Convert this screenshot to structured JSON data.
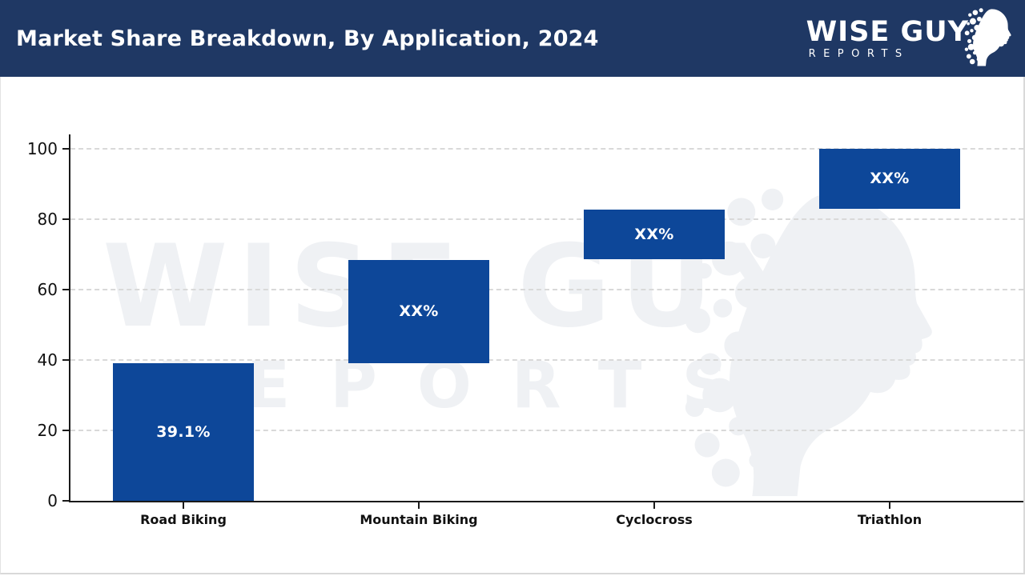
{
  "header": {
    "title": "Market Share Breakdown, By Application, 2024",
    "logo": {
      "line1": "WISE GUY",
      "line2": "REPORTS"
    }
  },
  "watermark": {
    "line1": "WISE GUY",
    "line2": "REPORTS"
  },
  "colors": {
    "header_bg": "#1f3864",
    "bar": "#0d4799",
    "bar_label": "#ffffff",
    "gridline": "#d9d9d9",
    "axis": "#1a1a1a",
    "watermark": "#eff1f4"
  },
  "chart_data": {
    "type": "waterfall",
    "title": "Market Share Breakdown, By Application, 2024",
    "categories": [
      "Road Biking",
      "Mountain Biking",
      "Cyclocross",
      "Triathlon"
    ],
    "segments": [
      {
        "category": "Road Biking",
        "start": 0,
        "end": 39.1,
        "label": "39.1%"
      },
      {
        "category": "Mountain Biking",
        "start": 39.1,
        "end": 68.4,
        "label": "XX%"
      },
      {
        "category": "Cyclocross",
        "start": 68.6,
        "end": 82.7,
        "label": "XX%"
      },
      {
        "category": "Triathlon",
        "start": 83.0,
        "end": 100.0,
        "label": "XX%"
      }
    ],
    "y_ticks": [
      0,
      20,
      40,
      60,
      80,
      100
    ],
    "ylim": [
      0,
      105
    ],
    "xlabel": "",
    "ylabel": "",
    "grid": "horizontal-dashed",
    "legend": null,
    "bar_color": "#0d4799",
    "bar_label_color": "#ffffff"
  }
}
